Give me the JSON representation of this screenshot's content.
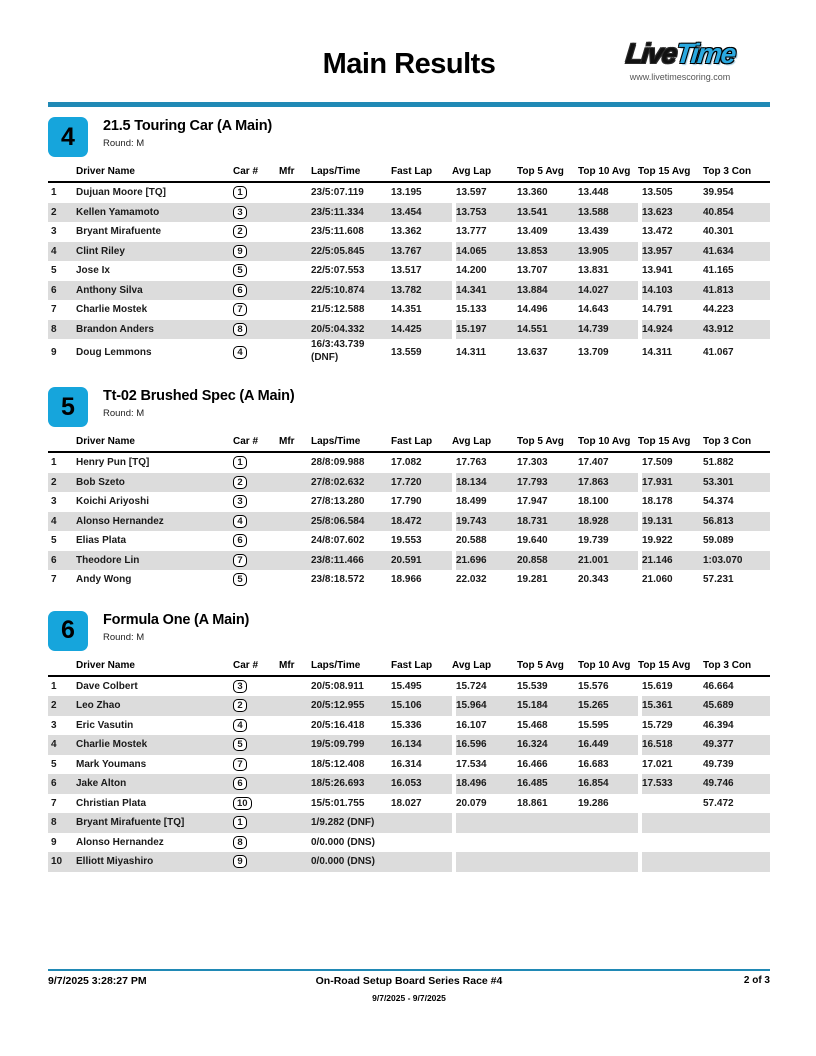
{
  "header": {
    "title": "Main Results",
    "logo": {
      "live": "Live",
      "time": "Time",
      "url": "www.livetimescoring.com"
    }
  },
  "colors": {
    "accent": "#16A5DC",
    "divider": "#2089B5",
    "row_shade": "#DCDCDC",
    "logo_blue": "#2AA9E0"
  },
  "columns": [
    "Driver Name",
    "Car #",
    "Mfr",
    "Laps/Time",
    "Fast Lap",
    "Avg Lap",
    "Top 5 Avg",
    "Top 10 Avg",
    "Top 15 Avg",
    "Top 3 Con"
  ],
  "sections": [
    {
      "number": "4",
      "title": "21.5 Touring Car  (A Main)",
      "round": "Round: M",
      "rows": [
        {
          "rank": "1",
          "driver": "Dujuan Moore [TQ]",
          "car": "1",
          "laps": "23/5:07.119",
          "fast": "13.195",
          "avg": "13.597",
          "t5": "13.360",
          "t10": "13.448",
          "t15": "13.505",
          "t3": "39.954"
        },
        {
          "rank": "2",
          "driver": "Kellen Yamamoto",
          "car": "3",
          "laps": "23/5:11.334",
          "fast": "13.454",
          "avg": "13.753",
          "t5": "13.541",
          "t10": "13.588",
          "t15": "13.623",
          "t3": "40.854"
        },
        {
          "rank": "3",
          "driver": "Bryant Mirafuente",
          "car": "2",
          "laps": "23/5:11.608",
          "fast": "13.362",
          "avg": "13.777",
          "t5": "13.409",
          "t10": "13.439",
          "t15": "13.472",
          "t3": "40.301"
        },
        {
          "rank": "4",
          "driver": "Clint Riley",
          "car": "9",
          "laps": "22/5:05.845",
          "fast": "13.767",
          "avg": "14.065",
          "t5": "13.853",
          "t10": "13.905",
          "t15": "13.957",
          "t3": "41.634"
        },
        {
          "rank": "5",
          "driver": "Jose Ix",
          "car": "5",
          "laps": "22/5:07.553",
          "fast": "13.517",
          "avg": "14.200",
          "t5": "13.707",
          "t10": "13.831",
          "t15": "13.941",
          "t3": "41.165"
        },
        {
          "rank": "6",
          "driver": "Anthony Silva",
          "car": "6",
          "laps": "22/5:10.874",
          "fast": "13.782",
          "avg": "14.341",
          "t5": "13.884",
          "t10": "14.027",
          "t15": "14.103",
          "t3": "41.813"
        },
        {
          "rank": "7",
          "driver": "Charlie Mostek",
          "car": "7",
          "laps": "21/5:12.588",
          "fast": "14.351",
          "avg": "15.133",
          "t5": "14.496",
          "t10": "14.643",
          "t15": "14.791",
          "t3": "44.223"
        },
        {
          "rank": "8",
          "driver": "Brandon Anders",
          "car": "8",
          "laps": "20/5:04.332",
          "fast": "14.425",
          "avg": "15.197",
          "t5": "14.551",
          "t10": "14.739",
          "t15": "14.924",
          "t3": "43.912"
        },
        {
          "rank": "9",
          "driver": "Doug Lemmons",
          "car": "4",
          "laps": "16/3:43.739",
          "laps_note": "(DNF)",
          "fast": "13.559",
          "avg": "14.311",
          "t5": "13.637",
          "t10": "13.709",
          "t15": "14.311",
          "t3": "41.067"
        }
      ]
    },
    {
      "number": "5",
      "title": "Tt-02 Brushed Spec (A Main)",
      "round": "Round: M",
      "rows": [
        {
          "rank": "1",
          "driver": "Henry Pun [TQ]",
          "car": "1",
          "laps": "28/8:09.988",
          "fast": "17.082",
          "avg": "17.763",
          "t5": "17.303",
          "t10": "17.407",
          "t15": "17.509",
          "t3": "51.882"
        },
        {
          "rank": "2",
          "driver": "Bob Szeto",
          "car": "2",
          "laps": "27/8:02.632",
          "fast": "17.720",
          "avg": "18.134",
          "t5": "17.793",
          "t10": "17.863",
          "t15": "17.931",
          "t3": "53.301"
        },
        {
          "rank": "3",
          "driver": "Koichi Ariyoshi",
          "car": "3",
          "laps": "27/8:13.280",
          "fast": "17.790",
          "avg": "18.499",
          "t5": "17.947",
          "t10": "18.100",
          "t15": "18.178",
          "t3": "54.374"
        },
        {
          "rank": "4",
          "driver": "Alonso Hernandez",
          "car": "4",
          "laps": "25/8:06.584",
          "fast": "18.472",
          "avg": "19.743",
          "t5": "18.731",
          "t10": "18.928",
          "t15": "19.131",
          "t3": "56.813"
        },
        {
          "rank": "5",
          "driver": "Elias Plata",
          "car": "6",
          "laps": "24/8:07.602",
          "fast": "19.553",
          "avg": "20.588",
          "t5": "19.640",
          "t10": "19.739",
          "t15": "19.922",
          "t3": "59.089"
        },
        {
          "rank": "6",
          "driver": "Theodore Lin",
          "car": "7",
          "laps": "23/8:11.466",
          "fast": "20.591",
          "avg": "21.696",
          "t5": "20.858",
          "t10": "21.001",
          "t15": "21.146",
          "t3": "1:03.070"
        },
        {
          "rank": "7",
          "driver": "Andy Wong",
          "car": "5",
          "laps": "23/8:18.572",
          "fast": "18.966",
          "avg": "22.032",
          "t5": "19.281",
          "t10": "20.343",
          "t15": "21.060",
          "t3": "57.231"
        }
      ]
    },
    {
      "number": "6",
      "title": "Formula One (A Main)",
      "round": "Round: M",
      "rows": [
        {
          "rank": "1",
          "driver": "Dave Colbert",
          "car": "3",
          "laps": "20/5:08.911",
          "fast": "15.495",
          "avg": "15.724",
          "t5": "15.539",
          "t10": "15.576",
          "t15": "15.619",
          "t3": "46.664"
        },
        {
          "rank": "2",
          "driver": "Leo Zhao",
          "car": "2",
          "laps": "20/5:12.955",
          "fast": "15.106",
          "avg": "15.964",
          "t5": "15.184",
          "t10": "15.265",
          "t15": "15.361",
          "t3": "45.689"
        },
        {
          "rank": "3",
          "driver": "Eric Vasutin",
          "car": "4",
          "laps": "20/5:16.418",
          "fast": "15.336",
          "avg": "16.107",
          "t5": "15.468",
          "t10": "15.595",
          "t15": "15.729",
          "t3": "46.394"
        },
        {
          "rank": "4",
          "driver": "Charlie Mostek",
          "car": "5",
          "laps": "19/5:09.799",
          "fast": "16.134",
          "avg": "16.596",
          "t5": "16.324",
          "t10": "16.449",
          "t15": "16.518",
          "t3": "49.377"
        },
        {
          "rank": "5",
          "driver": "Mark Youmans",
          "car": "7",
          "laps": "18/5:12.408",
          "fast": "16.314",
          "avg": "17.534",
          "t5": "16.466",
          "t10": "16.683",
          "t15": "17.021",
          "t3": "49.739"
        },
        {
          "rank": "6",
          "driver": "Jake Alton",
          "car": "6",
          "laps": "18/5:26.693",
          "fast": "16.053",
          "avg": "18.496",
          "t5": "16.485",
          "t10": "16.854",
          "t15": "17.533",
          "t3": "49.746"
        },
        {
          "rank": "7",
          "driver": "Christian Plata",
          "car": "10",
          "laps": "15/5:01.755",
          "fast": "18.027",
          "avg": "20.079",
          "t5": "18.861",
          "t10": "19.286",
          "t15": "",
          "t3": "57.472"
        },
        {
          "rank": "8",
          "driver": "Bryant Mirafuente [TQ]",
          "car": "1",
          "laps": "1/9.282 (DNF)",
          "fast": "",
          "avg": "",
          "t5": "",
          "t10": "",
          "t15": "",
          "t3": ""
        },
        {
          "rank": "9",
          "driver": "Alonso Hernandez",
          "car": "8",
          "laps": "0/0.000 (DNS)",
          "fast": "",
          "avg": "",
          "t5": "",
          "t10": "",
          "t15": "",
          "t3": ""
        },
        {
          "rank": "10",
          "driver": "Elliott Miyashiro",
          "car": "9",
          "laps": "0/0.000 (DNS)",
          "fast": "",
          "avg": "",
          "t5": "",
          "t10": "",
          "t15": "",
          "t3": ""
        }
      ]
    }
  ],
  "footer": {
    "timestamp": "9/7/2025 3:28:27 PM",
    "event_title": "On-Road Setup Board Series Race #4",
    "event_dates": "9/7/2025 - 9/7/2025",
    "page": "2 of 3"
  }
}
